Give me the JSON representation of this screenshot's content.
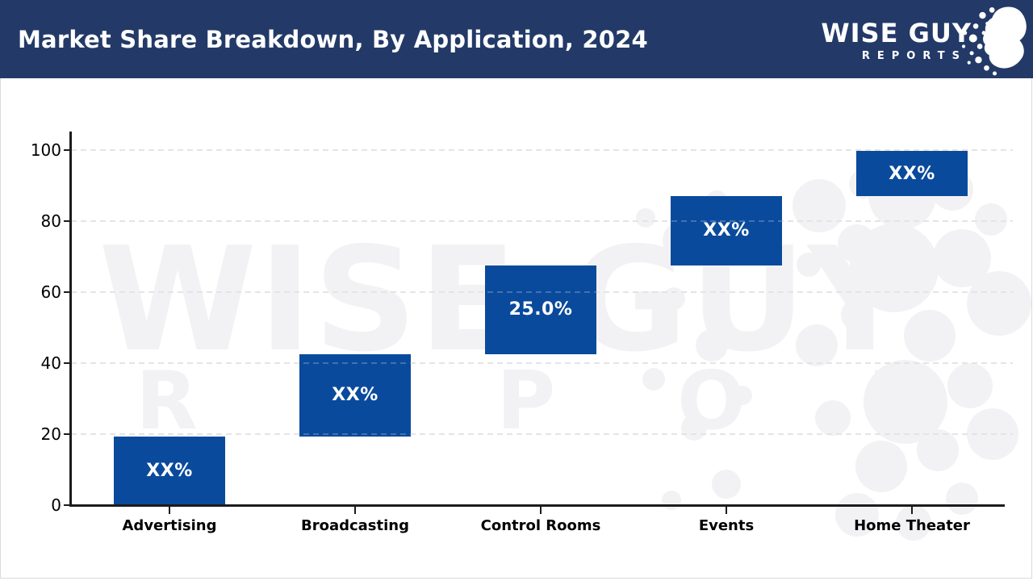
{
  "header": {
    "title": "Market Share Breakdown, By Application, 2024",
    "logo": {
      "line1": "WISE GUY",
      "line2": "REPORTS"
    }
  },
  "watermark": {
    "line1": "WISE GUY",
    "line2": "R E P O R T S"
  },
  "chart_data": {
    "type": "bar",
    "subtype": "floating-waterfall",
    "title": "Market Share Breakdown, By Application, 2024",
    "categories": [
      "Advertising",
      "Broadcasting",
      "Control Rooms",
      "Events",
      "Home Theater"
    ],
    "bars": [
      {
        "category": "Advertising",
        "start": 0,
        "end": 19.3,
        "label": "XX%"
      },
      {
        "category": "Broadcasting",
        "start": 19.3,
        "end": 42.6,
        "label": "XX%"
      },
      {
        "category": "Control Rooms",
        "start": 42.6,
        "end": 67.6,
        "label": "25.0%"
      },
      {
        "category": "Events",
        "start": 67.6,
        "end": 87.0,
        "label": "XX%"
      },
      {
        "category": "Home Theater",
        "start": 87.0,
        "end": 99.8,
        "label": "XX%"
      }
    ],
    "xlabel": "",
    "ylabel": "",
    "yticks": [
      0,
      20,
      40,
      60,
      80,
      100
    ],
    "ylim": [
      0,
      105
    ],
    "grid": "horizontal-dashed",
    "legend": "none",
    "bar_color": "#0a4a9c",
    "bar_label_color": "#ffffff",
    "header_color": "#233a68",
    "axis_color": "#1c1c1c",
    "grid_color": "#dcdcdc",
    "watermark_color": "#f2f2f4"
  }
}
